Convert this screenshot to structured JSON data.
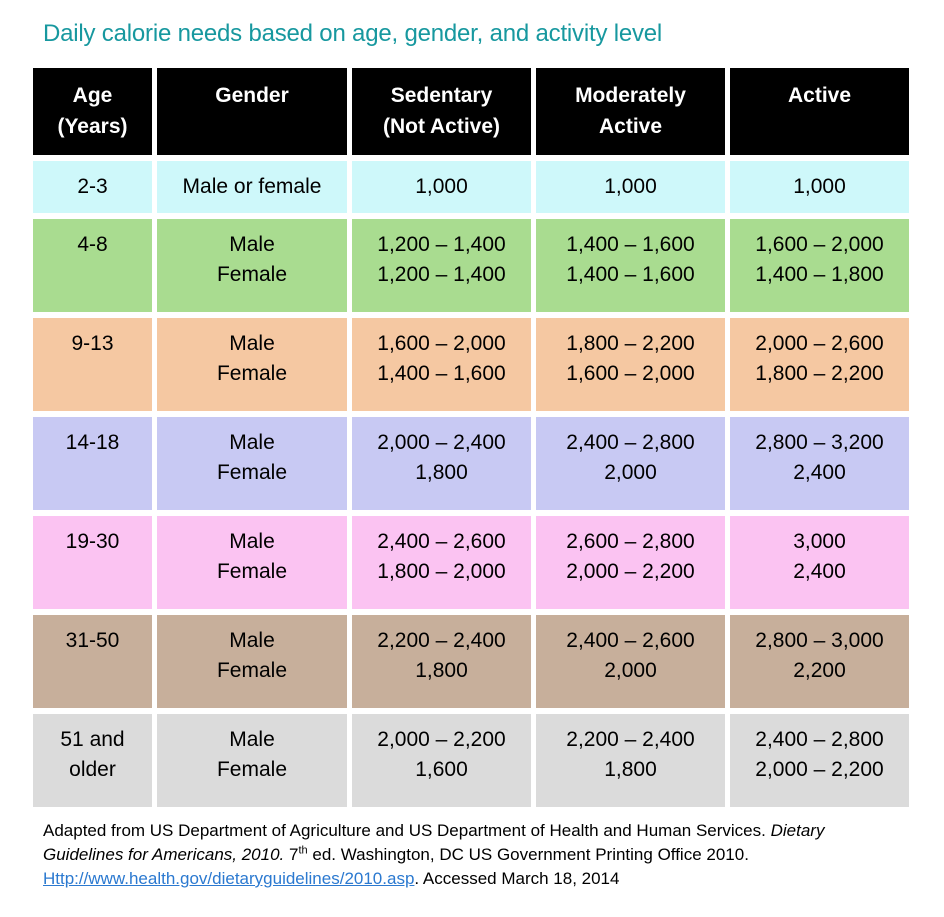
{
  "title": "Daily calorie needs based on age, gender, and activity level",
  "colors": {
    "title": "#17989F",
    "header_bg": "#000000",
    "header_text": "#FFFFFF",
    "link": "#2B79D0",
    "page_bg": "#FFFFFF"
  },
  "table": {
    "columns": [
      {
        "lines": [
          "Age",
          "(Years)"
        ]
      },
      {
        "lines": [
          "Gender"
        ]
      },
      {
        "lines": [
          "Sedentary",
          "(Not Active)"
        ]
      },
      {
        "lines": [
          "Moderately",
          "Active"
        ]
      },
      {
        "lines": [
          "Active"
        ]
      }
    ],
    "rows": [
      {
        "bg": "#CEF8FA",
        "age": [
          "2-3"
        ],
        "gender": [
          "Male or female"
        ],
        "sedentary": [
          "1,000"
        ],
        "moderately_active": [
          "1,000"
        ],
        "active": [
          "1,000"
        ]
      },
      {
        "bg": "#A9DC90",
        "age": [
          "4-8"
        ],
        "gender": [
          "Male",
          "Female"
        ],
        "sedentary": [
          "1,200 – 1,400",
          "1,200 – 1,400"
        ],
        "moderately_active": [
          "1,400 – 1,600",
          "1,400 – 1,600"
        ],
        "active": [
          "1,600 – 2,000",
          "1,400 – 1,800"
        ]
      },
      {
        "bg": "#F5C8A2",
        "age": [
          "9-13"
        ],
        "gender": [
          "Male",
          "Female"
        ],
        "sedentary": [
          "1,600 – 2,000",
          "1,400 – 1,600"
        ],
        "moderately_active": [
          "1,800 – 2,200",
          "1,600 – 2,000"
        ],
        "active": [
          "2,000 – 2,600",
          "1,800 – 2,200"
        ]
      },
      {
        "bg": "#C8C9F3",
        "age": [
          "14-18"
        ],
        "gender": [
          "Male",
          "Female"
        ],
        "sedentary": [
          "2,000 – 2,400",
          "1,800"
        ],
        "moderately_active": [
          "2,400 – 2,800",
          "2,000"
        ],
        "active": [
          "2,800 – 3,200",
          "2,400"
        ]
      },
      {
        "bg": "#FBC3F2",
        "age": [
          "19-30"
        ],
        "gender": [
          "Male",
          "Female"
        ],
        "sedentary": [
          "2,400 – 2,600",
          "1,800 – 2,000"
        ],
        "moderately_active": [
          "2,600 – 2,800",
          "2,000 – 2,200"
        ],
        "active": [
          "3,000",
          "2,400"
        ]
      },
      {
        "bg": "#C7AF9B",
        "age": [
          "31-50"
        ],
        "gender": [
          "Male",
          "Female"
        ],
        "sedentary": [
          "2,200 – 2,400",
          "1,800"
        ],
        "moderately_active": [
          "2,400 – 2,600",
          "2,000"
        ],
        "active": [
          "2,800 – 3,000",
          "2,200"
        ]
      },
      {
        "bg": "#DBDBDB",
        "age": [
          "51 and",
          "older"
        ],
        "gender": [
          "Male",
          "Female"
        ],
        "sedentary": [
          "2,000 – 2,200",
          "1,600"
        ],
        "moderately_active": [
          "2,200 – 2,400",
          "1,800"
        ],
        "active": [
          "2,400 – 2,800",
          "2,000 – 2,200"
        ]
      }
    ]
  },
  "footer": {
    "l1_text": "Adapted from US Department of Agriculture and US Department of Health and Human Services. ",
    "l1_italic": "Dietary",
    "l2_italic": "Guidelines for Americans, 2010.",
    "l2_a": " 7",
    "l2_sup": "th",
    "l2_b": " ed. Washington, DC US Government Printing Office 2010.",
    "l3_link": "Http://www.health.gov/dietaryguidelines/2010.asp",
    "l3_text": ". Accessed March 18, 2014"
  },
  "chart_data": {
    "type": "table",
    "title": "Daily calorie needs based on age, gender, and activity level",
    "columns": [
      "Age (Years)",
      "Gender",
      "Sedentary (Not Active)",
      "Moderately Active",
      "Active"
    ],
    "rows": [
      [
        "2-3",
        "Male or female",
        "1,000",
        "1,000",
        "1,000"
      ],
      [
        "4-8",
        "Male / Female",
        "1,200 – 1,400 / 1,200 – 1,400",
        "1,400 – 1,600 / 1,400 – 1,600",
        "1,600 – 2,000 / 1,400 – 1,800"
      ],
      [
        "9-13",
        "Male / Female",
        "1,600 – 2,000 / 1,400 – 1,600",
        "1,800 – 2,200 / 1,600 – 2,000",
        "2,000 – 2,600 / 1,800 – 2,200"
      ],
      [
        "14-18",
        "Male / Female",
        "2,000 – 2,400 / 1,800",
        "2,400 – 2,800 / 2,000",
        "2,800 – 3,200 / 2,400"
      ],
      [
        "19-30",
        "Male / Female",
        "2,400 – 2,600 / 1,800 – 2,000",
        "2,600 – 2,800 / 2,000 – 2,200",
        "3,000 / 2,400"
      ],
      [
        "31-50",
        "Male / Female",
        "2,200 – 2,400 / 1,800",
        "2,400 – 2,600 / 2,000",
        "2,800 – 3,000 / 2,200"
      ],
      [
        "51 and older",
        "Male / Female",
        "2,000 – 2,200 / 1,600",
        "2,200 – 2,400 / 1,800",
        "2,400 – 2,800 / 2,000 – 2,200"
      ]
    ]
  }
}
